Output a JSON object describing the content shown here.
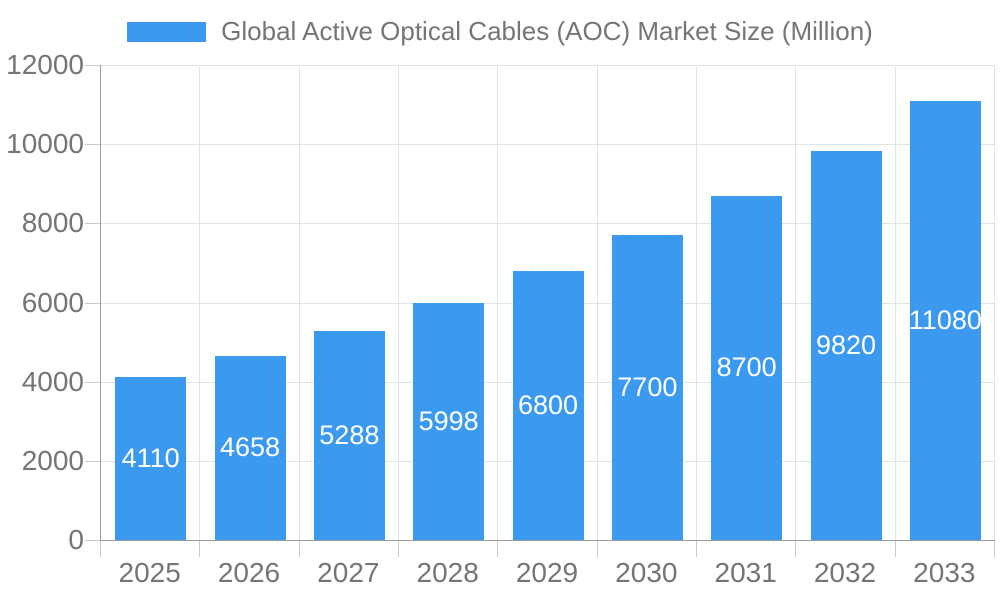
{
  "legend": {
    "label": "Global Active Optical Cables (AOC) Market Size (Million)"
  },
  "colors": {
    "bar": "#3B99F0",
    "grid": "#E3E3E3",
    "tick": "#C9C9C9",
    "axis": "#9B9B9B",
    "text": "#757575",
    "value_text": "#FFFFFF",
    "background": "#FFFFFF"
  },
  "chart_data": {
    "type": "bar",
    "title": "Global Active Optical Cables (AOC) Market Size (Million)",
    "categories": [
      "2025",
      "2026",
      "2027",
      "2028",
      "2029",
      "2030",
      "2031",
      "2032",
      "2033"
    ],
    "values": [
      4110,
      4658,
      5288,
      5998,
      6800,
      7700,
      8700,
      9820,
      11080
    ],
    "xlabel": "",
    "ylabel": "",
    "ylim": [
      0,
      12000
    ],
    "y_ticks": [
      0,
      2000,
      4000,
      6000,
      8000,
      10000,
      12000
    ],
    "grid": true,
    "legend_position": "top-center",
    "value_label_position": "inside-center"
  }
}
